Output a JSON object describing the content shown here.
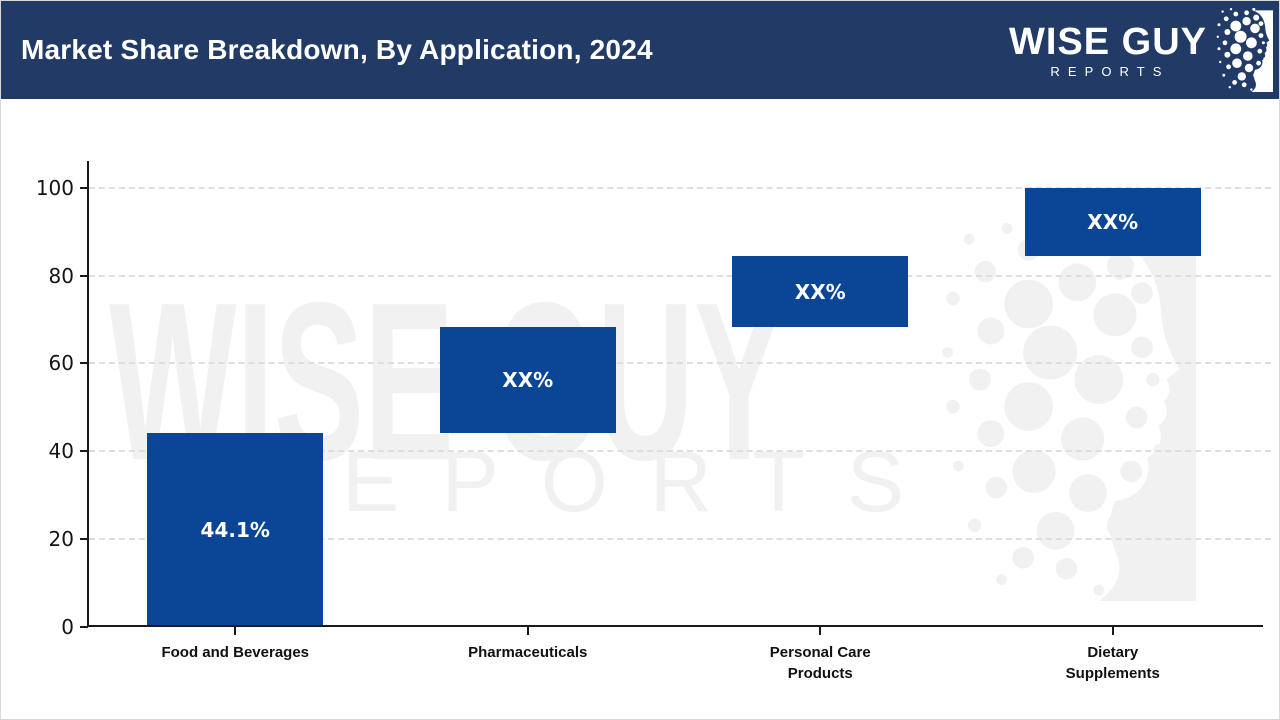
{
  "header": {
    "title": "Market Share Breakdown, By Application, 2024",
    "bg_color": "#213a66",
    "logo": {
      "line1": "WISE GUY",
      "line2": "REPORTS",
      "icon": "dotted-head-profile-icon",
      "color": "#ffffff"
    }
  },
  "watermark": {
    "line1": "WISE GUY",
    "line2": "REPORTS",
    "icon": "dotted-head-profile-icon",
    "color": "#f1f1f1"
  },
  "canvas": {
    "bg_color": "#ffffff",
    "border_color": "#d7d7d7"
  },
  "chart_data": {
    "type": "bar",
    "variant": "stacked-waterfall",
    "title": "Market Share Breakdown, By Application, 2024",
    "categories": [
      "Food and Beverages",
      "Pharmaceuticals",
      "Personal Care Products",
      "Dietary Supplements"
    ],
    "category_lines": [
      [
        "Food and Beverages"
      ],
      [
        "Pharmaceuticals"
      ],
      [
        "Personal Care",
        "Products"
      ],
      [
        "Dietary",
        "Supplements"
      ]
    ],
    "segments": [
      {
        "category": "Food and Beverages",
        "start": 0,
        "end": 44.1,
        "label": "44.1%"
      },
      {
        "category": "Pharmaceuticals",
        "start": 44.1,
        "end": 68.2,
        "label": "XX%"
      },
      {
        "category": "Personal Care Products",
        "start": 68.2,
        "end": 84.4,
        "label": "XX%"
      },
      {
        "category": "Dietary Supplements",
        "start": 84.4,
        "end": 100,
        "label": "XX%"
      }
    ],
    "xlabel": "",
    "ylabel": "",
    "ylim": [
      0,
      100
    ],
    "yticks": [
      0,
      20,
      40,
      60,
      80,
      100
    ],
    "grid": {
      "horizontal": true,
      "style": "dashed",
      "color": "#dedede"
    },
    "legend": null,
    "bar_color": "#0b4596",
    "bar_label_color": "#ffffff",
    "axis_color": "#1a1a1a"
  }
}
